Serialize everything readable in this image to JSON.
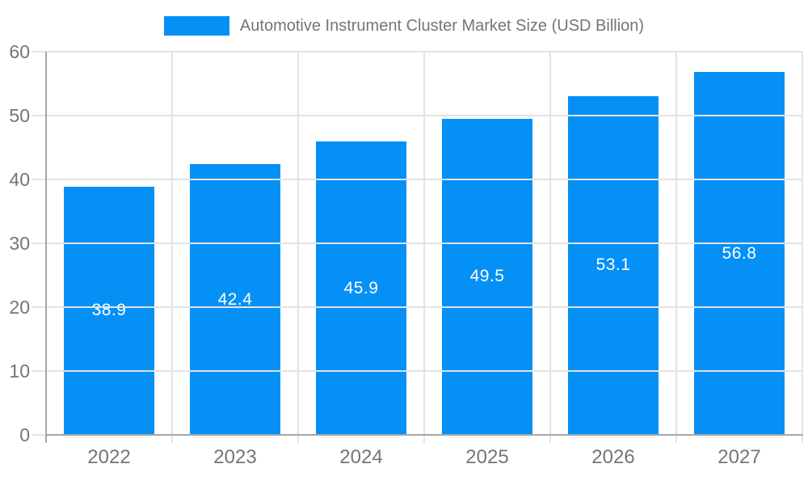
{
  "legend": {
    "items": [
      {
        "label": "Automotive Instrument Cluster Market Size (USD Billion)",
        "color": "#0590f5"
      }
    ]
  },
  "chart_data": {
    "type": "bar",
    "title": "Automotive Instrument Cluster Market Size (USD Billion)",
    "series_name": "Automotive Instrument Cluster Market Size (USD Billion)",
    "categories": [
      "2022",
      "2023",
      "2024",
      "2025",
      "2026",
      "2027"
    ],
    "values": [
      38.9,
      42.4,
      45.9,
      49.5,
      53.1,
      56.8
    ],
    "bar_labels": [
      "38.9",
      "42.4",
      "45.9",
      "49.5",
      "53.1",
      "56.8"
    ],
    "xlabel": "",
    "ylabel": "",
    "ylim": [
      0,
      60
    ],
    "yticks": [
      0,
      10,
      20,
      30,
      40,
      50,
      60
    ],
    "grid": true,
    "legend_position": "top",
    "bar_labels_shown": true,
    "bar_label_position": "center"
  },
  "colors": {
    "bar": "#0590f5",
    "bar_label_text": "#ffffff",
    "grid_line": "#e3e3e3",
    "axis_line": "#a6a6a6",
    "axis_label_text": "#757575",
    "legend_text": "#757575",
    "background": "#ffffff"
  }
}
